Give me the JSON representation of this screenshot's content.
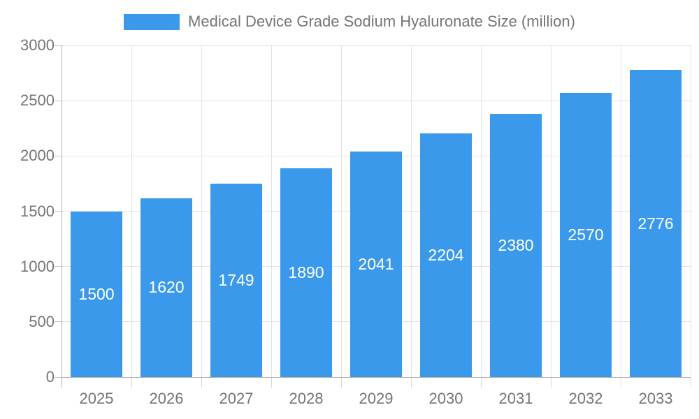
{
  "legend": {
    "label": "Medical Device Grade Sodium Hyaluronate Size (million)"
  },
  "chart_data": {
    "type": "bar",
    "title": "Medical Device Grade Sodium Hyaluronate Size (million)",
    "categories": [
      "2025",
      "2026",
      "2027",
      "2028",
      "2029",
      "2030",
      "2031",
      "2032",
      "2033"
    ],
    "series": [
      {
        "name": "Medical Device Grade Sodium Hyaluronate Size (million)",
        "values": [
          1500,
          1620,
          1749,
          1890,
          2041,
          2204,
          2380,
          2570,
          2776
        ]
      }
    ],
    "xlabel": "",
    "ylabel": "",
    "ylim": [
      0,
      3000
    ],
    "yticks": [
      0,
      500,
      1000,
      1500,
      2000,
      2500,
      3000
    ],
    "grid": true,
    "legend_position": "top",
    "colors": {
      "bar": "#3b99ec",
      "bar_label_text": "#ffffff",
      "axis_text": "#757575",
      "grid_line": "#e2e2e2",
      "axis_line": "#b3b3b3"
    }
  }
}
